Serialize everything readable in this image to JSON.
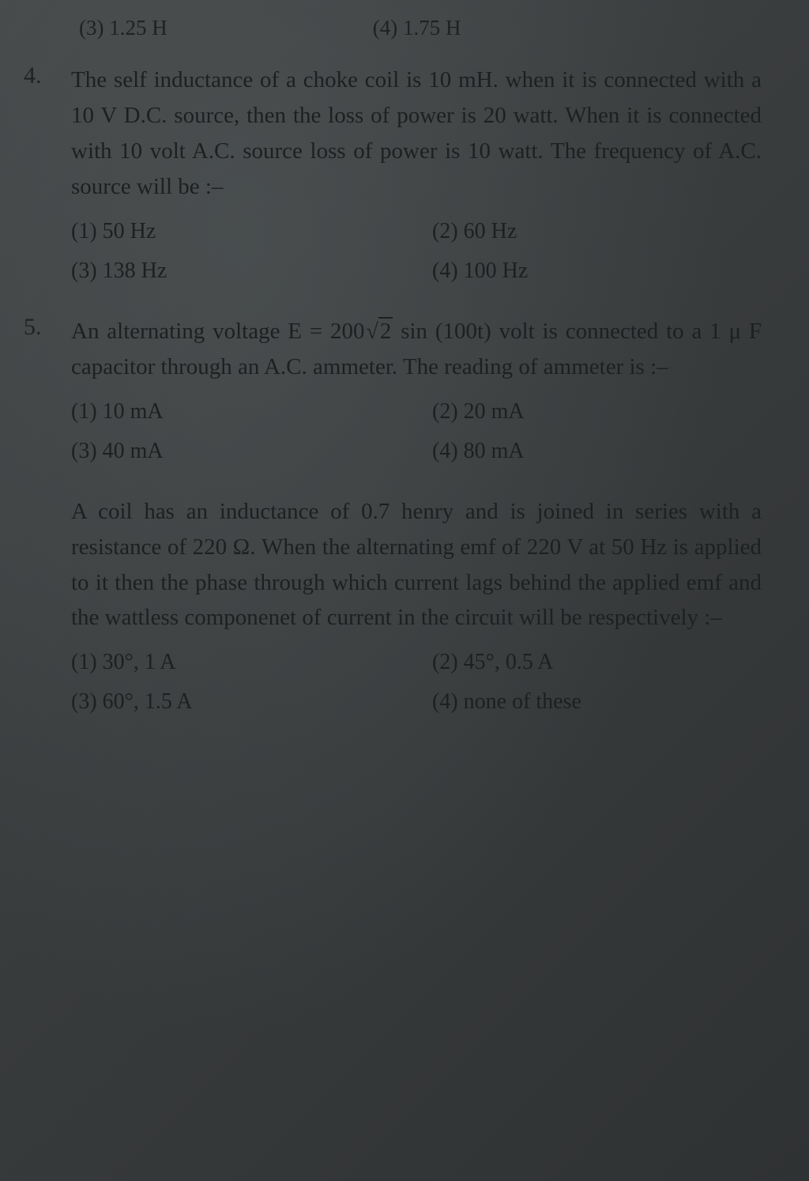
{
  "prior": {
    "opt3": "(3) 1.25 H",
    "opt4": "(4) 1.75 H"
  },
  "q4": {
    "number": "4.",
    "text": "The self inductance of a choke coil is 10 mH. when it is connected with a 10 V D.C. source, then the loss of power is 20 watt. When it is connected with 10 volt A.C. source loss of power is 10 watt. The frequency of A.C. source will be :–",
    "options": {
      "o1": "(1) 50 Hz",
      "o2": "(2) 60 Hz",
      "o3": "(3) 138 Hz",
      "o4": "(4) 100 Hz"
    }
  },
  "q5": {
    "number": "5.",
    "text_before": "An alternating voltage E = 200",
    "sqrt_val": "2",
    "text_after": " sin (100t) volt is connected to a 1 μ F capacitor through an A.C. ammeter. The reading of ammeter is :–",
    "options": {
      "o1": "(1) 10 mA",
      "o2": "(2) 20 mA",
      "o3": "(3) 40 mA",
      "o4": "(4) 80 mA"
    }
  },
  "q6": {
    "number": "",
    "text": "A coil has an inductance of 0.7 henry and is joined in series with a resistance of 220 Ω. When the alternating emf of 220 V at 50 Hz is applied to it then the phase through which current lags behind the applied emf and the wattless componenet of current in the circuit will be respectively :–",
    "options": {
      "o1": "(1) 30°, 1 A",
      "o2": "(2) 45°, 0.5 A",
      "o3": "(3) 60°, 1.5 A",
      "o4": "(4) none of these"
    }
  }
}
